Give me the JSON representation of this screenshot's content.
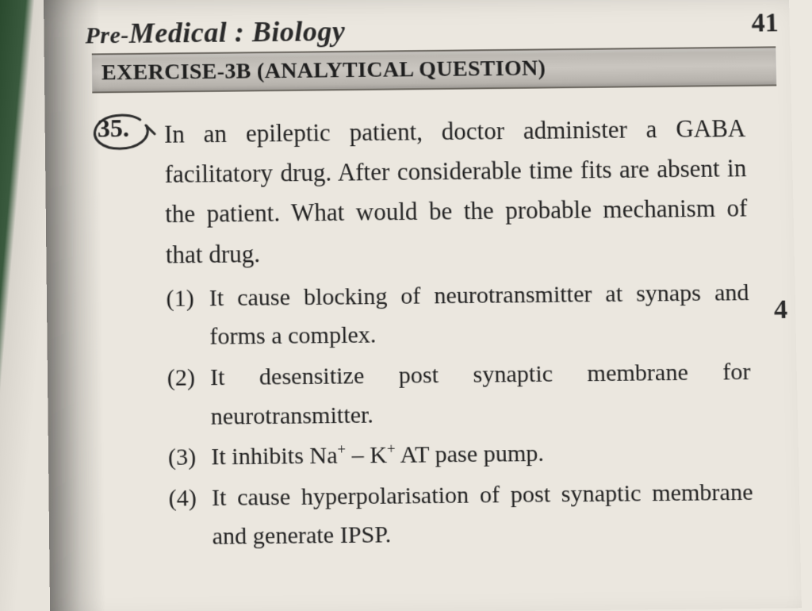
{
  "page": {
    "book_title_prefix": "Pre-",
    "book_title_main": "Medical : Biology",
    "page_number": "41",
    "right_margin_fragment": "4"
  },
  "section": {
    "label": "EXERCISE-3B (ANALYTICAL QUESTION)"
  },
  "question": {
    "number": "35.",
    "stem": "In an epileptic patient, doctor administer a GABA facilitatory drug. After considerable time fits are absent in the patient. What would be the probable mechanism of that drug.",
    "options": [
      {
        "n": "(1)",
        "t": "It cause blocking of neurotransmitter at synaps and forms a complex."
      },
      {
        "n": "(2)",
        "t": "It desensitize post synaptic membrane for neurotransmitter."
      },
      {
        "n": "(3)",
        "t_html": "It inhibits Na<span class='sup'>+</span> – K<span class='sup'>+</span> AT pase pump."
      },
      {
        "n": "(4)",
        "t": "It cause hyperpolarisation of post synaptic membrane and generate IPSP."
      }
    ]
  },
  "style": {
    "paper_bg": "#ebe7df",
    "ink": "#222222",
    "bar_bg_top": "#b8b4ae",
    "bar_bg_mid": "#cac6c0",
    "bar_bg_bot": "#b0aca6",
    "title_fontsize_pt": 27,
    "section_fontsize_pt": 21,
    "body_fontsize_pt": 23,
    "circle_stroke": "#2b2b2b",
    "circle_stroke_width": 3
  }
}
